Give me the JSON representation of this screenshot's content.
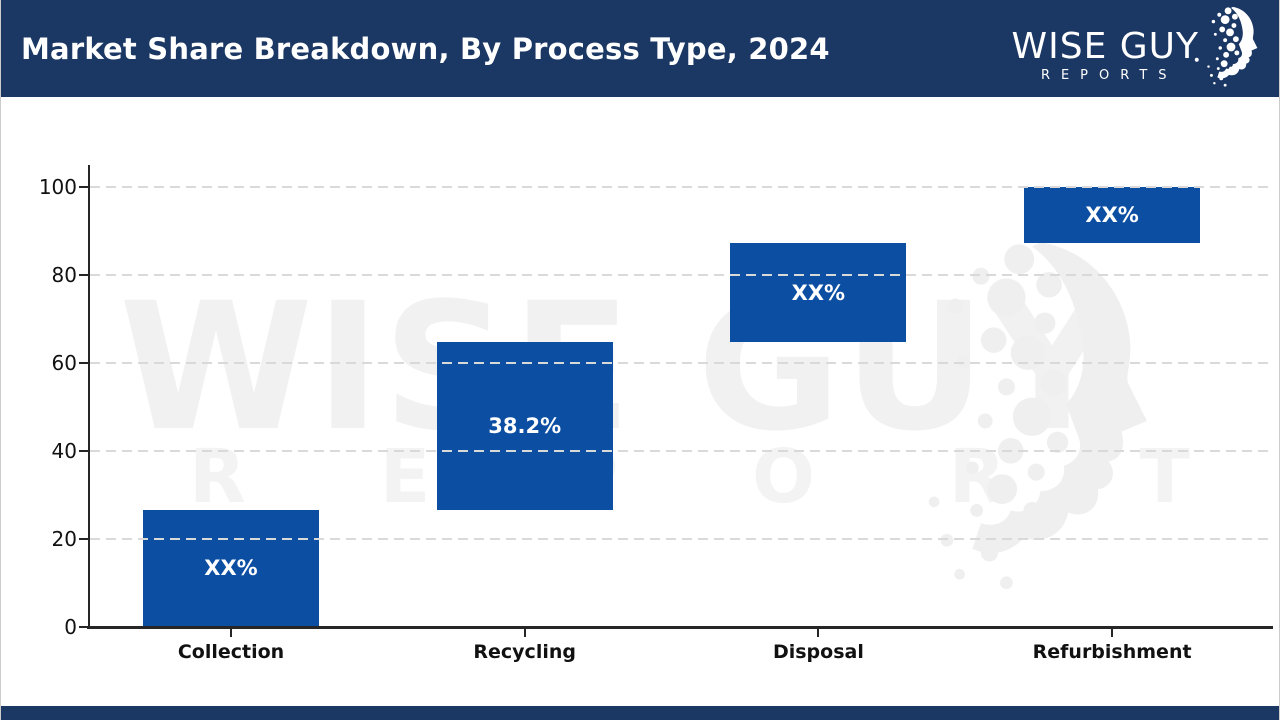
{
  "header": {
    "title": "Market Share Breakdown, By Process Type, 2024",
    "logo": {
      "line1": "WISE GUY",
      "line2": "REPORTS"
    }
  },
  "watermark": {
    "line1": "WISE GUY",
    "line2": "R E P O R T S"
  },
  "chart_data": {
    "type": "bar",
    "variant": "waterfall",
    "title": "Market Share Breakdown, By Process Type, 2024",
    "categories": [
      "Collection",
      "Recycling",
      "Disposal",
      "Refurbishment"
    ],
    "series": [
      {
        "name": "Market Share (%)",
        "starts": [
          0,
          26.4,
          64.6,
          87.1
        ],
        "ends": [
          26.4,
          64.6,
          87.1,
          100
        ]
      }
    ],
    "bar_labels": [
      "XX%",
      "38.2%",
      "XX%",
      "XX%"
    ],
    "xlabel": "",
    "ylabel": "",
    "yticks": [
      0,
      20,
      40,
      60,
      80,
      100
    ],
    "ylim": [
      0,
      107.5
    ],
    "grid": "horizontal-dashed-over-bars",
    "legend": false
  },
  "colors": {
    "header_bg": "#1b3764",
    "bar": "#0b4ea2",
    "gridline": "#d9d9d9",
    "axis": "#262626",
    "bar_label_text": "#ffffff",
    "watermark": "#f1f1f1"
  }
}
